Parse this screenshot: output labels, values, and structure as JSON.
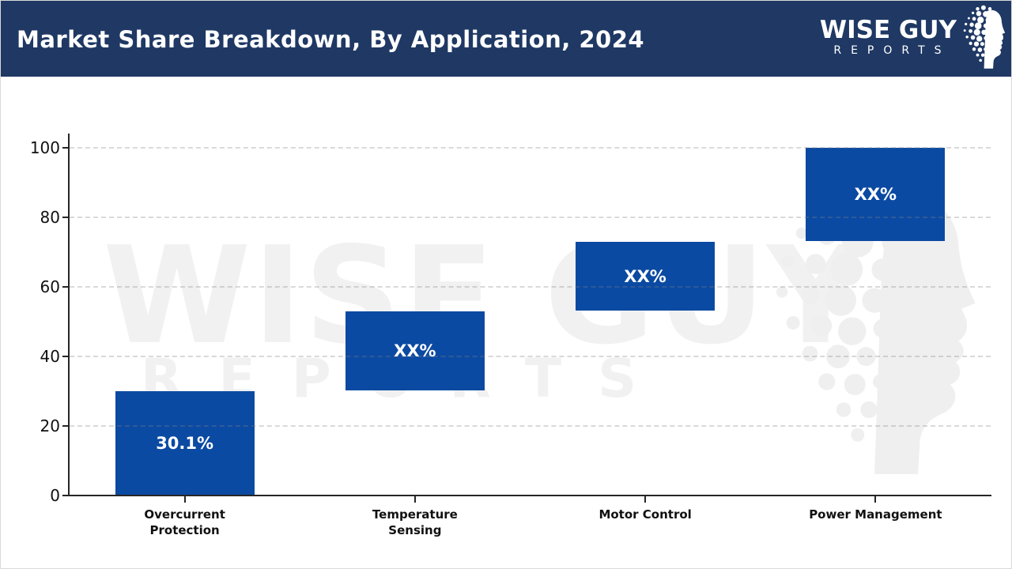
{
  "header": {
    "title": "Market Share Breakdown, By Application, 2024",
    "logo": {
      "brand_top": "WISE GUY",
      "brand_bottom": "REPORTS"
    }
  },
  "watermark": {
    "brand_top": "WISE GUY",
    "brand_bottom": "REPORTS"
  },
  "chart_data": {
    "type": "bar",
    "subtype": "floating-segment-waterfall",
    "title": "Market Share Breakdown, By Application, 2024",
    "categories": [
      "Overcurrent Protection",
      "Temperature Sensing",
      "Motor Control",
      "Power Management"
    ],
    "category_label_lines": [
      [
        "Overcurrent",
        "Protection"
      ],
      [
        "Temperature",
        "Sensing"
      ],
      [
        "Motor Control"
      ],
      [
        "Power Management"
      ]
    ],
    "segments": [
      {
        "category": "Overcurrent Protection",
        "start": 0,
        "end": 30.1,
        "label": "30.1%"
      },
      {
        "category": "Temperature Sensing",
        "start": 30.1,
        "end": 53,
        "label": "XX%"
      },
      {
        "category": "Motor Control",
        "start": 53,
        "end": 73,
        "label": "XX%"
      },
      {
        "category": "Power Management",
        "start": 73,
        "end": 100,
        "label": "XX%"
      }
    ],
    "ylim": [
      0,
      100
    ],
    "yticks": [
      0,
      20,
      40,
      60,
      80,
      100
    ],
    "xlabel": "",
    "ylabel": "",
    "grid": "horizontal-dashed",
    "legend": "none",
    "colors": {
      "bar": "#0b4aa2",
      "bar_label": "#ffffff",
      "axis": "#262626",
      "tick_label": "#111111",
      "gridline": "#dcdcdc",
      "header_bg": "#1f3864",
      "watermark": "#f1f1f1"
    }
  }
}
